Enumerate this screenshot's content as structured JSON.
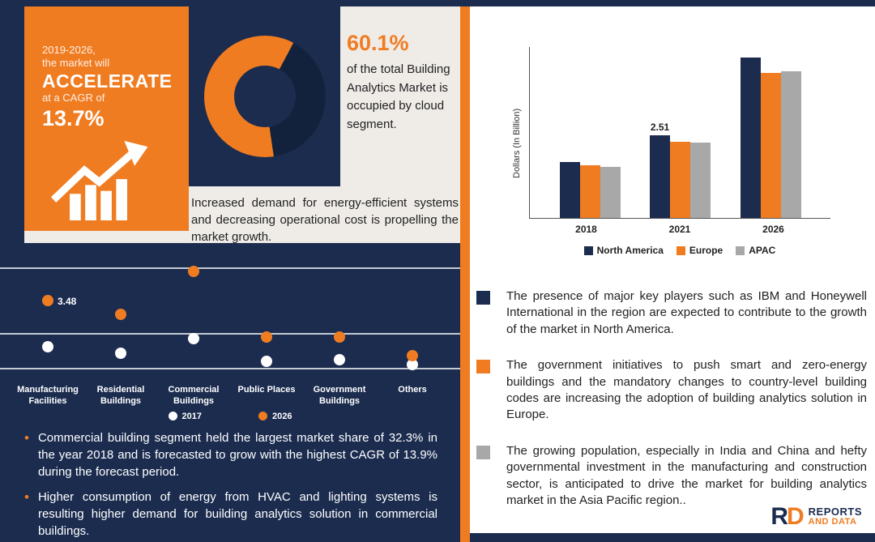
{
  "colors": {
    "orange": "#f07c22",
    "navy": "#1b2c4f",
    "navy_dark": "#13223c",
    "gray": "#a8a8a8",
    "light_bg": "#efece8"
  },
  "accelerate": {
    "period": "2019-2026,",
    "line2": "the market will",
    "line3": "ACCELERATE",
    "line4": "at a CAGR of",
    "cagr": "13.7%"
  },
  "cloud_stat": {
    "value": "60.1%",
    "description": "of the total Building Analytics Market is occupied by cloud segment."
  },
  "demand_note": "Increased demand for energy-efficient systems and decreasing operational cost is propelling the market growth.",
  "left_bullets": [
    "Commercial building segment held the largest market share of 32.3% in the year 2018 and is forecasted to grow with the highest CAGR of 13.9% during the forecast period.",
    "Higher consumption of energy from HVAC and lighting systems is resulting higher demand for building analytics solution in commercial buildings."
  ],
  "right_bullets": [
    {
      "color": "#1b2c4f",
      "text": "The presence of major key players such as IBM and Honeywell International in the region are expected to contribute to the growth of the market in North America."
    },
    {
      "color": "#f07c22",
      "text": "The government initiatives to push smart and zero-energy buildings and the mandatory changes to country-level building codes are increasing the adoption of building analytics solution in Europe."
    },
    {
      "color": "#a8a8a8",
      "text": "The growing population, especially in India and China and hefty governmental investment in the manufacturing and construction sector, is anticipated to drive the market for building analytics market in the Asia Pacific region.."
    }
  ],
  "logo": {
    "mark_r": "R",
    "mark_d": "D",
    "line1": "REPORTS",
    "line2": "AND DATA"
  },
  "chart_data": [
    {
      "id": "cloud_donut",
      "type": "pie",
      "labels": [
        "Cloud segment",
        "Other segments"
      ],
      "values": [
        60.1,
        39.9
      ],
      "colors": [
        "#f07c22",
        "#13223c"
      ],
      "center_hole": true,
      "annotation": "60.1% of the total Building Analytics Market is occupied by cloud segment."
    },
    {
      "id": "segment_dot_plot",
      "type": "scatter",
      "categories": [
        "Manufacturing Facilities",
        "Residential Buildings",
        "Commercial Buildings",
        "Public Places",
        "Government Buildings",
        "Others"
      ],
      "series": [
        {
          "name": "2017",
          "color": "#ffffff",
          "values": [
            1.4,
            1.1,
            1.75,
            0.75,
            0.8,
            0.6
          ]
        },
        {
          "name": "2026",
          "color": "#f07c22",
          "values": [
            3.48,
            2.85,
            4.8,
            1.85,
            1.85,
            1.0
          ]
        }
      ],
      "ylim": [
        0,
        5.5
      ],
      "grid": true,
      "legend_position": "bottom",
      "annotations": [
        {
          "series": "2026",
          "category": "Manufacturing Facilities",
          "text": "3.48"
        }
      ]
    },
    {
      "id": "regional_bars",
      "type": "bar",
      "categories": [
        "2018",
        "2021",
        "2026"
      ],
      "series": [
        {
          "name": "North America",
          "color": "#1b2c4f",
          "values": [
            1.7,
            2.51,
            4.85
          ]
        },
        {
          "name": "Europe",
          "color": "#f07c22",
          "values": [
            1.6,
            2.3,
            4.4
          ]
        },
        {
          "name": "APAC",
          "color": "#a8a8a8",
          "values": [
            1.55,
            2.28,
            4.45
          ]
        }
      ],
      "ylabel": "Dollars (In Billion)",
      "ylim": [
        0,
        5.2
      ],
      "grid": false,
      "legend_position": "bottom",
      "data_labels": [
        {
          "series": "North America",
          "category": "2021",
          "text": "2.51"
        }
      ]
    }
  ]
}
